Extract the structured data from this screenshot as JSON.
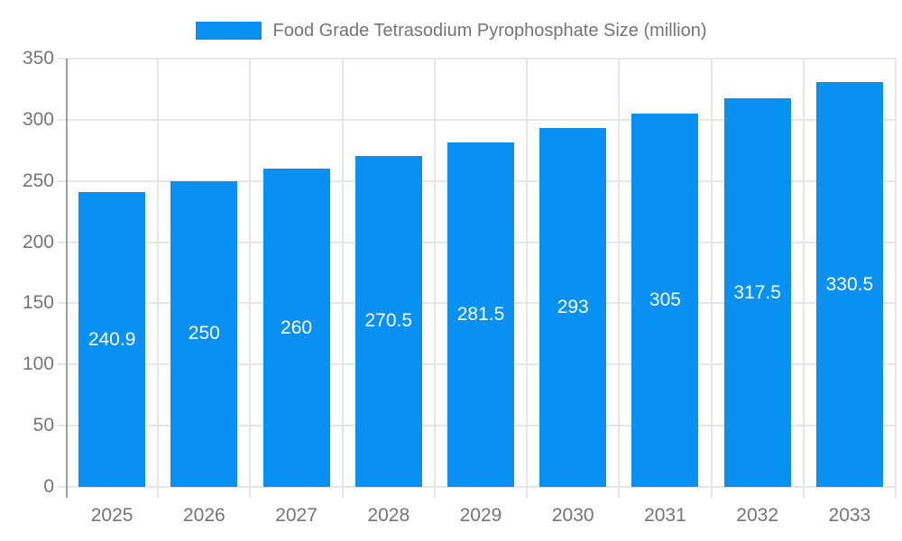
{
  "chart_data": {
    "type": "bar",
    "title": "Food Grade Tetrasodium Pyrophosphate Size (million)",
    "legend": {
      "label": "Food Grade Tetrasodium Pyrophosphate Size (million)",
      "position": "top"
    },
    "categories": [
      "2025",
      "2026",
      "2027",
      "2028",
      "2029",
      "2030",
      "2031",
      "2032",
      "2033"
    ],
    "series": [
      {
        "name": "Food Grade Tetrasodium Pyrophosphate Size (million)",
        "values": [
          240.9,
          250,
          260,
          270.5,
          281.5,
          293,
          305,
          317.5,
          330.5
        ]
      }
    ],
    "value_labels": [
      "240.9",
      "250",
      "260",
      "270.5",
      "281.5",
      "293",
      "305",
      "317.5",
      "330.5"
    ],
    "xlabel": "",
    "ylabel": "",
    "ylim": [
      0,
      350
    ],
    "yticks": [
      0,
      50,
      100,
      150,
      200,
      250,
      300,
      350
    ],
    "grid": true,
    "colors": {
      "bar": "#0890F2",
      "gridline": "#e6e6e6",
      "axis_line": "#9e9e9e",
      "tick_label": "#757575",
      "value_label": "#ffffff",
      "background": "#ffffff"
    }
  }
}
